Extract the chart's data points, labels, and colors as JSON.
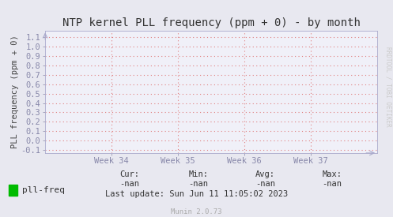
{
  "title": "NTP kernel PLL frequency (ppm + 0) - by month",
  "ylabel": "PLL frequency (ppm + 0)",
  "yticks": [
    -0.1,
    0.0,
    0.1,
    0.2,
    0.3,
    0.4,
    0.5,
    0.6,
    0.7,
    0.8,
    0.9,
    1.0,
    1.1
  ],
  "ylim": [
    -0.13,
    1.17
  ],
  "xtick_labels": [
    "Week 34",
    "Week 35",
    "Week 36",
    "Week 37"
  ],
  "xtick_positions": [
    0.2,
    0.4,
    0.6,
    0.8
  ],
  "xlim": [
    0.0,
    1.0
  ],
  "bg_color": "#e8e8f0",
  "plot_bg_color": "#f0f0f8",
  "grid_color": "#e08080",
  "title_color": "#333333",
  "axis_label_color": "#444444",
  "tick_label_color": "#8888aa",
  "legend_label": "pll-freq",
  "legend_color": "#00bb00",
  "stats_labels": [
    "Cur:",
    "Min:",
    "Avg:",
    "Max:"
  ],
  "stats_values": [
    "-nan",
    "-nan",
    "-nan",
    "-nan"
  ],
  "last_update": "Last update: Sun Jun 11 11:05:02 2023",
  "munin_version": "Munin 2.0.73",
  "watermark": "RRDTOOL / TOBI OETIKER",
  "title_fontsize": 10,
  "axis_label_fontsize": 7.5,
  "tick_fontsize": 7.5,
  "legend_fontsize": 8,
  "stats_fontsize": 7.5,
  "munin_fontsize": 6.5,
  "watermark_fontsize": 5.5
}
